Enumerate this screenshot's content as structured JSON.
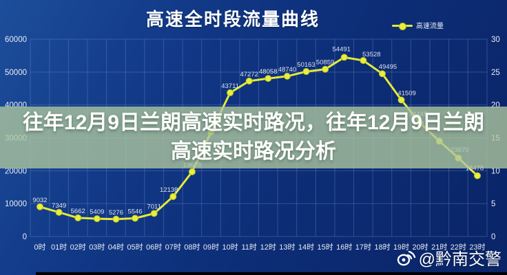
{
  "title": "高速全时段流量曲线",
  "legend": {
    "label": "高速流量"
  },
  "overlay_banner": {
    "text": "往年12月9日兰朗高速实时路况，往年12月9日兰朗高速实时路况分析"
  },
  "watermark": {
    "handle": "@黔南交警",
    "icon": "weibo-icon"
  },
  "colors": {
    "line": "#e3ea38",
    "marker_fill": "#e9ee3e",
    "marker_stroke": "#b9c023",
    "grid": "rgba(120,150,210,0.35)",
    "axis_text": "#e8ecf5",
    "point_label": "#dde3f0"
  },
  "chart_data": {
    "type": "line",
    "title": "高速全时段流量曲线",
    "legend_entries": [
      "高速流量"
    ],
    "categories": [
      "0时",
      "01时",
      "02时",
      "03时",
      "04时",
      "05时",
      "06时",
      "07时",
      "08时",
      "09时",
      "10时",
      "11时",
      "12时",
      "13时",
      "14时",
      "15时",
      "16时",
      "17时",
      "18时",
      "19时",
      "20时",
      "21时",
      "22时",
      "23时"
    ],
    "series": [
      {
        "name": "高速流量",
        "values": [
          9032,
          7349,
          5662,
          5409,
          5276,
          5546,
          7011,
          12138,
          19678,
          31800,
          43711,
          47272,
          48058,
          48740,
          50163,
          50859,
          54491,
          53528,
          49495,
          41509,
          34445,
          29000,
          23870,
          18478
        ]
      }
    ],
    "hidden_labels": [
      9,
      21
    ],
    "left_axis": {
      "min": 0,
      "max": 60000,
      "step": 10000
    },
    "right_axis": {
      "min": 0,
      "max": 30,
      "step": 5
    },
    "grid": true,
    "legend_position": "top-right"
  }
}
